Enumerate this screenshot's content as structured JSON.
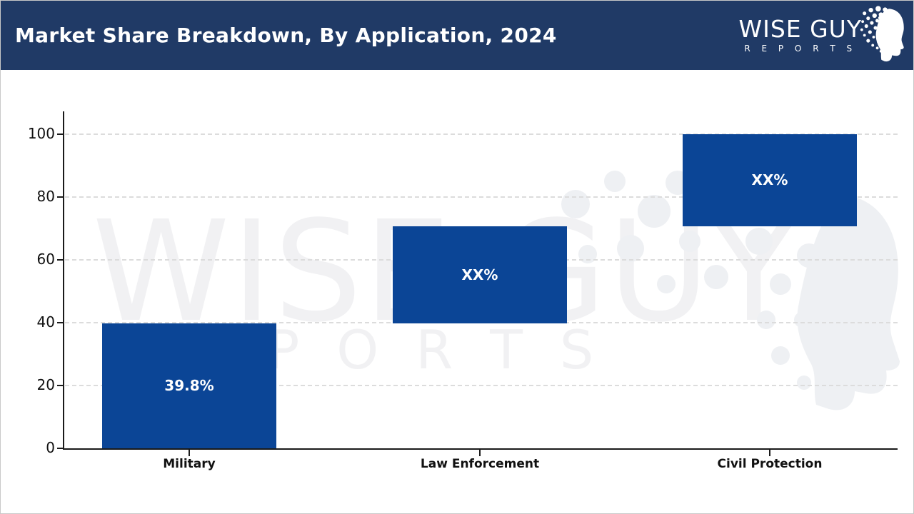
{
  "header": {
    "title": "Market Share Breakdown, By Application, 2024",
    "logo": {
      "name": "Wise Guy Reports",
      "line1": "WISE GUY",
      "line2": "R E P O R T S"
    }
  },
  "watermark": {
    "line1": "WISE GUY",
    "line2": "R E P O R T S"
  },
  "chart_data": {
    "type": "bar",
    "variant": "floating-segment-waterfall",
    "title": "Market Share Breakdown, By Application, 2024",
    "categories": [
      "Military",
      "Law Enforcement",
      "Civil Protection"
    ],
    "bars": [
      {
        "category": "Military",
        "from": 0,
        "to": 39.8,
        "label": "39.8%"
      },
      {
        "category": "Law Enforcement",
        "from": 39.8,
        "to": 70.7,
        "label": "XX%"
      },
      {
        "category": "Civil Protection",
        "from": 70.7,
        "to": 100,
        "label": "XX%"
      }
    ],
    "yticks": [
      0,
      20,
      40,
      60,
      80,
      100
    ],
    "ylim": [
      0,
      107
    ],
    "xlabel": "",
    "ylabel": "",
    "grid": "horizontal-dashed",
    "legend": "none",
    "colors": {
      "bar": "#0b4596",
      "bar_label": "#ffffff",
      "grid": "#dcdcdc",
      "axis": "#1a1a1a",
      "header_bg": "#203a66",
      "header_text": "#ffffff",
      "tick_text": "#111111",
      "watermark": "#f1f1f3"
    }
  }
}
